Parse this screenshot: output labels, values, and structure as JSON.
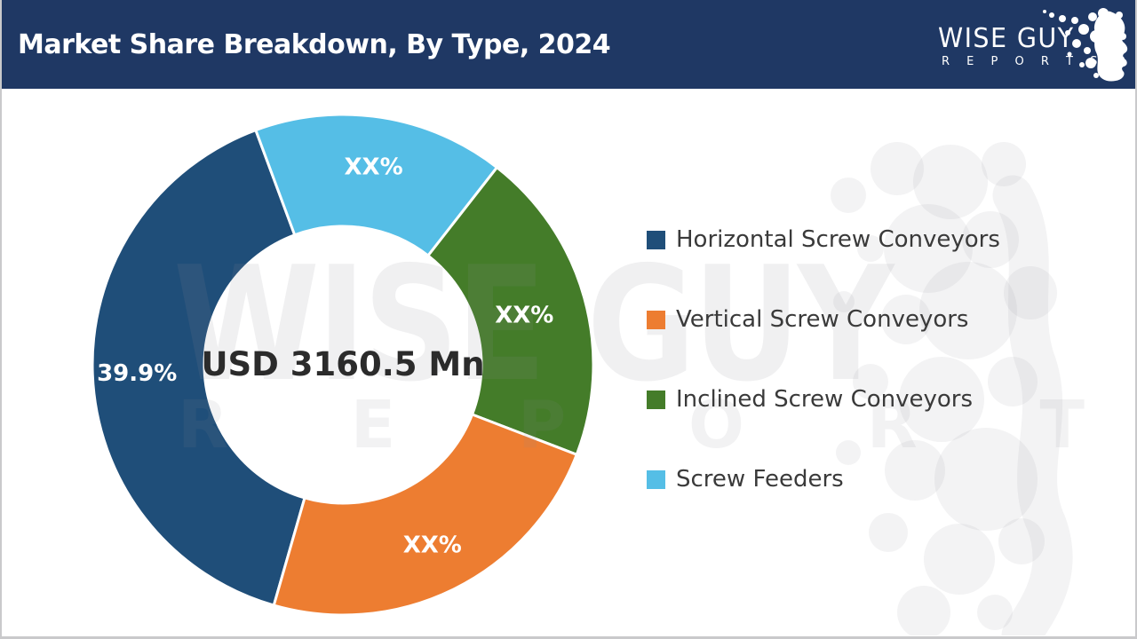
{
  "header": {
    "title": "Market Share Breakdown, By Type, 2024",
    "bg_color": "#1f3864",
    "logo": {
      "line1": "WISE GUY",
      "line2": "R E P O R T S"
    }
  },
  "chart_data": {
    "type": "pie",
    "style": "donut",
    "title": "Market Share Breakdown, By Type, 2024",
    "center_label": "USD 3160.5 Mn",
    "legend_position": "right",
    "start_angle_deg": 196,
    "draw_order": [
      0,
      3,
      2,
      1
    ],
    "segments": [
      {
        "label": "Horizontal Screw Conveyors",
        "value_label": "39.9%",
        "pct": 39.9,
        "color": "#1f4e79",
        "label_r": 232
      },
      {
        "label": "Vertical Screw Conveyors",
        "value_label": "XX%",
        "pct": 23.6,
        "color": "#ed7d31",
        "label_r": 226
      },
      {
        "label": "Inclined Screw Conveyors",
        "value_label": "XX%",
        "pct": 20.3,
        "color": "#447c29",
        "label_r": 212
      },
      {
        "label": "Screw Feeders",
        "value_label": "XX%",
        "pct": 16.2,
        "color": "#55bee6",
        "label_r": 226
      }
    ]
  },
  "watermark": {
    "line1": "WISE GUY",
    "line2": "R E P O R T S"
  }
}
